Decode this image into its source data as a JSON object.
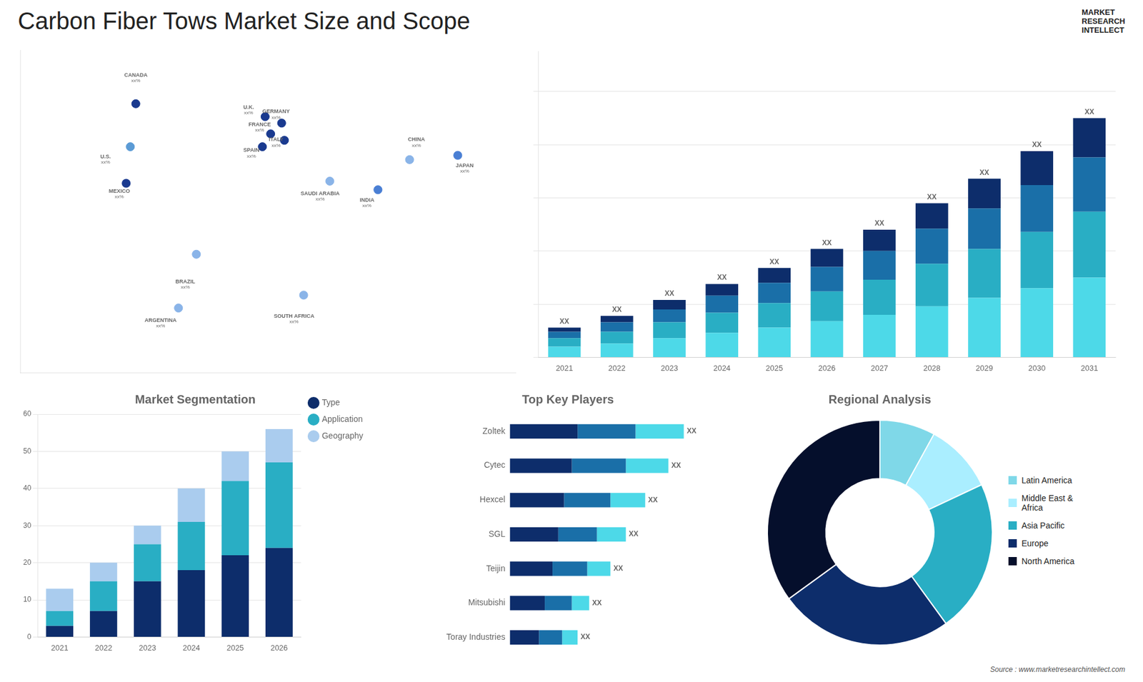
{
  "chart_data": [
    {
      "type": "scatter",
      "title": "Carbon Fiber Tows Market Size and Scope",
      "labels": [
        "CANADA",
        "U.S.",
        "MEXICO",
        "BRAZIL",
        "ARGENTINA",
        "U.K.",
        "FRANCE",
        "SPAIN",
        "GERMANY",
        "ITALY",
        "SAUDI ARABIA",
        "SOUTH AFRICA",
        "CHINA",
        "INDIA",
        "JAPAN"
      ],
      "x": [
        -96,
        -100,
        -103,
        -52,
        -65,
        -2,
        2,
        -4,
        10,
        12,
        45,
        26,
        103,
        80,
        138
      ],
      "values": [
        60,
        40,
        23,
        -10,
        -35,
        54,
        46,
        40,
        51,
        43,
        24,
        -29,
        34,
        20,
        36
      ],
      "colors": [
        "#1a3a8f",
        "#5b9bd5",
        "#1a3a8f",
        "#8ab4e8",
        "#8ab4e8",
        "#1a3a8f",
        "#1a3a8f",
        "#1a3a8f",
        "#1a3a8f",
        "#1a3a8f",
        "#8ab4e8",
        "#8ab4e8",
        "#8ab4e8",
        "#4a7fd4",
        "#4a7fd4"
      ],
      "label_x": [
        -96,
        -118,
        -108,
        -60,
        -78,
        -14,
        -6,
        -12,
        6,
        6,
        38,
        19,
        108,
        72,
        143
      ],
      "label_y": [
        72,
        34,
        18,
        -24,
        -42,
        57,
        49,
        37,
        55,
        42,
        17,
        -40,
        42,
        14,
        30
      ],
      "value_labels": [
        "xx%",
        "xx%",
        "xx%",
        "xx%",
        "xx%",
        "xx%",
        "xx%",
        "xx%",
        "xx%",
        "xx%",
        "xx%",
        "xx%",
        "xx%",
        "xx%",
        "xx%"
      ],
      "xlim": [
        -180,
        180
      ],
      "ylim": [
        -65,
        85
      ],
      "tick_labels": false,
      "grid": false
    },
    {
      "type": "bar",
      "stacked": true,
      "categories": [
        2021,
        2022,
        2023,
        2024,
        2025,
        2026,
        2027,
        2028,
        2029,
        2030,
        2031
      ],
      "series": [
        {
          "color": "#4dd9e8",
          "values": [
            1.0,
            1.3,
            1.8,
            2.3,
            2.8,
            3.4,
            4.0,
            4.8,
            5.6,
            6.5,
            7.5
          ]
        },
        {
          "color": "#29aec4",
          "values": [
            0.8,
            1.1,
            1.5,
            1.9,
            2.3,
            2.8,
            3.3,
            4.0,
            4.6,
            5.3,
            6.2
          ]
        },
        {
          "color": "#1a6fa8",
          "values": [
            0.6,
            0.9,
            1.2,
            1.6,
            1.9,
            2.3,
            2.7,
            3.3,
            3.8,
            4.4,
            5.1
          ]
        },
        {
          "color": "#0d2d6b",
          "values": [
            0.4,
            0.6,
            0.9,
            1.1,
            1.4,
            1.7,
            2.0,
            2.4,
            2.8,
            3.2,
            3.7
          ]
        }
      ],
      "total_labels": [
        "XX",
        "XX",
        "XX",
        "XX",
        "XX",
        "XX",
        "XX",
        "XX",
        "XX",
        "XX",
        "XX"
      ],
      "ylim": [
        0,
        28.8
      ],
      "yticks": [
        0,
        5,
        10,
        15,
        20,
        25
      ],
      "grid": true,
      "tick_labels": "x",
      "annotations": [
        "MARKET",
        "RESEARCH",
        "INTELLECT"
      ]
    },
    {
      "type": "bar",
      "stacked": true,
      "title": "Market Segmentation",
      "categories": [
        2021,
        2022,
        2023,
        2024,
        2025,
        2026
      ],
      "series": [
        {
          "name": "Type",
          "color": "#0d2d6b",
          "values": [
            3,
            7,
            15,
            18,
            22,
            24
          ]
        },
        {
          "name": "Application",
          "color": "#29aec4",
          "values": [
            4,
            8,
            10,
            13,
            20,
            23
          ]
        },
        {
          "name": "Geography",
          "color": "#aaccee",
          "values": [
            6,
            5,
            5,
            9,
            8,
            9
          ]
        }
      ],
      "ylim": [
        0,
        60
      ],
      "yticks": [
        0,
        10,
        20,
        30,
        40,
        50,
        60
      ],
      "grid": true,
      "legend": "right"
    },
    {
      "type": "bar",
      "orientation": "horizontal",
      "stacked": true,
      "title": "Top Key Players",
      "categories": [
        "Zoltek",
        "Cytec",
        "Hexcel",
        "SGL",
        "Teijin",
        "Mitsubishi",
        "Toray Industries"
      ],
      "series": [
        {
          "color": "#0d2d6b",
          "values": [
            3.5,
            3.2,
            2.8,
            2.5,
            2.2,
            1.8,
            1.5
          ]
        },
        {
          "color": "#1a6fa8",
          "values": [
            3.0,
            2.8,
            2.4,
            2.0,
            1.8,
            1.4,
            1.2
          ]
        },
        {
          "color": "#4dd9e8",
          "values": [
            2.5,
            2.2,
            1.8,
            1.5,
            1.2,
            0.9,
            0.8
          ]
        }
      ],
      "total_labels": [
        "XX",
        "XX",
        "XX",
        "XX",
        "XX",
        "XX",
        "XX"
      ],
      "xlim": [
        -6,
        12
      ],
      "tick_labels": false,
      "grid": false
    },
    {
      "type": "doughnut",
      "title": "Regional Analysis",
      "labels": [
        "Latin America",
        "Middle East &\nAfrica",
        "Asia Pacific",
        "Europe",
        "North America"
      ],
      "values": [
        8,
        10,
        22,
        25,
        35
      ],
      "colors": [
        "#7fd8e8",
        "#aaeeff",
        "#29aec4",
        "#0d2d6b",
        "#050f2c"
      ],
      "legend": "right",
      "annotations": [
        "Source : www.marketresearchintellect.com"
      ]
    }
  ]
}
